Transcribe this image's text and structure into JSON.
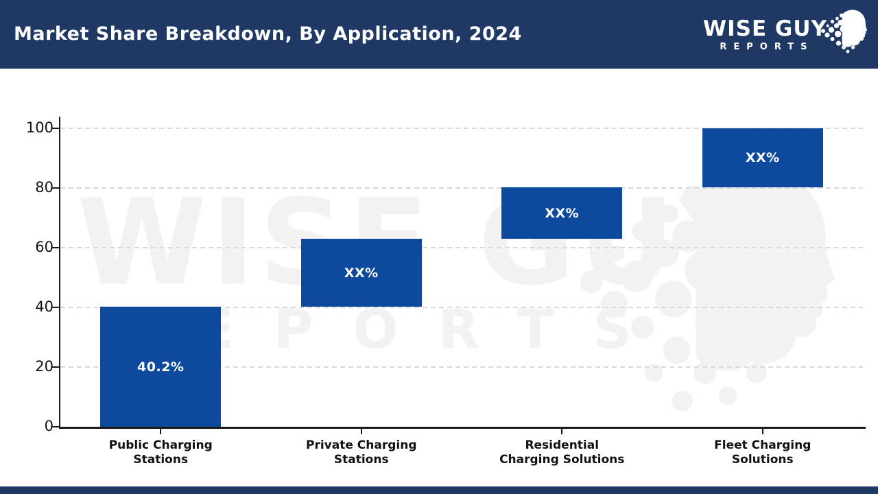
{
  "header": {
    "title": "Market Share Breakdown, By Application, 2024",
    "logo": {
      "line1": "WISE GUY",
      "line2": "REPORTS"
    }
  },
  "watermark": {
    "line1": "WISE GUY",
    "line2": "REPORTS"
  },
  "colors": {
    "header_navy": "#1f3864",
    "footer_navy": "#1f3864",
    "bar_blue": "#0d4a9e",
    "grid_gray": "#d9d9d9",
    "watermark_gray": "#f2f2f2",
    "axis_black": "#1a1a1a",
    "bar_label_white": "#ffffff"
  },
  "chart_data": {
    "type": "bar",
    "subtype": "waterfall",
    "title": "Market Share Breakdown, By Application, 2024",
    "categories": [
      [
        "Public Charging",
        "Stations"
      ],
      [
        "Private Charging",
        "Stations"
      ],
      [
        "Residential",
        "Charging Solutions"
      ],
      [
        "Fleet Charging",
        "Solutions"
      ]
    ],
    "bars": [
      {
        "category": "Public Charging Stations",
        "label": "40.2%",
        "from": 0,
        "to": 40.2
      },
      {
        "category": "Private Charging Stations",
        "label": "XX%",
        "from": 40.2,
        "to": 63.0
      },
      {
        "category": "Residential Charging Solutions",
        "label": "XX%",
        "from": 63.0,
        "to": 80.2
      },
      {
        "category": "Fleet Charging Solutions",
        "label": "XX%",
        "from": 80.2,
        "to": 100
      }
    ],
    "yticks": [
      0,
      20,
      40,
      60,
      80,
      100
    ],
    "ylim": [
      0,
      100
    ],
    "xlabel": "",
    "ylabel": "",
    "grid": "horizontal-dashed",
    "legend": null
  }
}
